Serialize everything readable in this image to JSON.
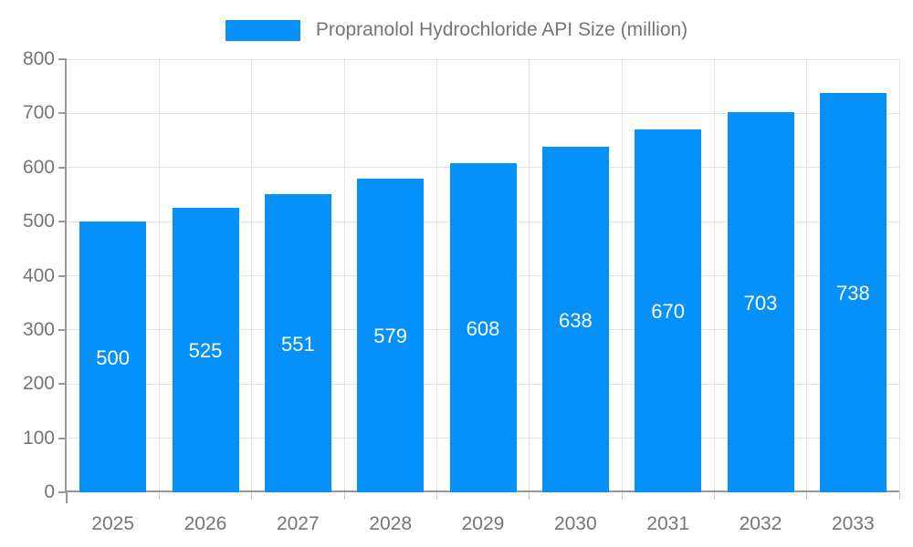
{
  "chart_data": {
    "type": "bar",
    "title": "Propranolol Hydrochloride API Size (million)",
    "legend": {
      "position": "top",
      "label": "Propranolol Hydrochloride API Size (million)"
    },
    "categories": [
      "2025",
      "2026",
      "2027",
      "2028",
      "2029",
      "2030",
      "2031",
      "2032",
      "2033"
    ],
    "values": [
      500,
      525,
      551,
      579,
      608,
      638,
      670,
      703,
      738
    ],
    "bar_value_labels": [
      "500",
      "525",
      "551",
      "579",
      "608",
      "638",
      "670",
      "703",
      "738"
    ],
    "xlabel": "",
    "ylabel": "",
    "ylim": [
      0,
      800
    ],
    "y_tick_step": 100,
    "y_tick_labels": [
      "0",
      "100",
      "200",
      "300",
      "400",
      "500",
      "600",
      "700",
      "800"
    ],
    "grid": true,
    "value_labels_inside_bars": true
  },
  "colors": {
    "bar": "#0590fa",
    "bar_label": "#ffffff",
    "axis_text": "#757575",
    "axis_line": "#999999",
    "gridline": "#e3e3e3",
    "background": "#ffffff"
  }
}
